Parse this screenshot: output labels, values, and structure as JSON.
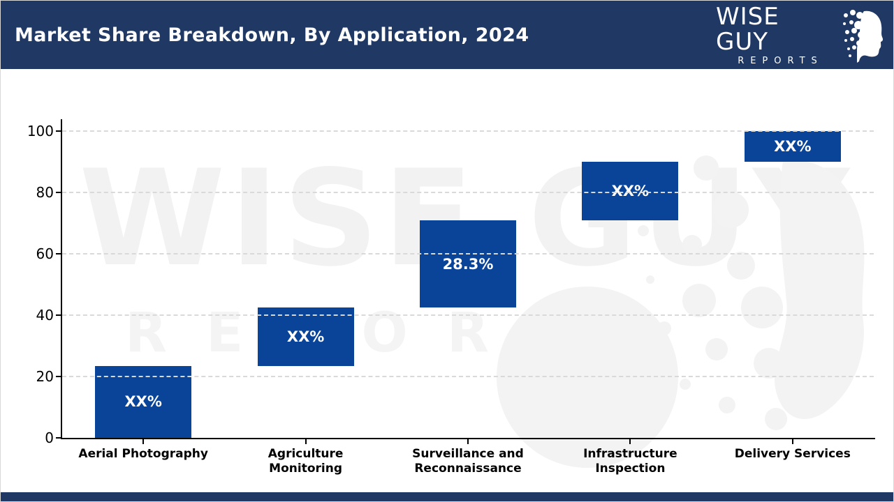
{
  "header": {
    "title": "Market Share Breakdown, By Application, 2024",
    "logo": {
      "line1": "WISE GUY",
      "line2": "REPORTS"
    }
  },
  "watermark": {
    "line1": "WISE GUY",
    "line2": "REPORTS"
  },
  "colors": {
    "header_bg": "#1f3864",
    "footer_bg": "#1f3864",
    "bar": "#0a4499",
    "bar_label": "#ffffff",
    "gridline": "#d9d9d9",
    "axis": "#000000",
    "watermark": "#f2f2f2"
  },
  "chart_data": {
    "type": "bar",
    "subtype": "floating-segment waterfall",
    "title": "Market Share Breakdown, By Application, 2024",
    "xlabel": "",
    "ylabel": "",
    "ylim": [
      0,
      100
    ],
    "yticks": [
      0,
      20,
      40,
      60,
      80,
      100
    ],
    "grid": "horizontal dashed",
    "legend": false,
    "categories": [
      "Aerial Photography",
      "Agriculture Monitoring",
      "Surveillance and Reconnaissance",
      "Infrastructure Inspection",
      "Delivery Services"
    ],
    "category_label_lines": [
      [
        "Aerial Photography"
      ],
      [
        "Agriculture",
        "Monitoring"
      ],
      [
        "Surveillance and",
        "Reconnaissance"
      ],
      [
        "Infrastructure",
        "Inspection"
      ],
      [
        "Delivery Services"
      ]
    ],
    "segments": [
      {
        "category": "Aerial Photography",
        "start": 0,
        "end": 23.5,
        "label": "XX%"
      },
      {
        "category": "Agriculture Monitoring",
        "start": 23.5,
        "end": 42.5,
        "label": "XX%"
      },
      {
        "category": "Surveillance and Reconnaissance",
        "start": 42.5,
        "end": 70.8,
        "label": "28.3%"
      },
      {
        "category": "Infrastructure Inspection",
        "start": 70.8,
        "end": 90,
        "label": "XX%"
      },
      {
        "category": "Delivery Services",
        "start": 90,
        "end": 100,
        "label": "XX%"
      }
    ]
  }
}
